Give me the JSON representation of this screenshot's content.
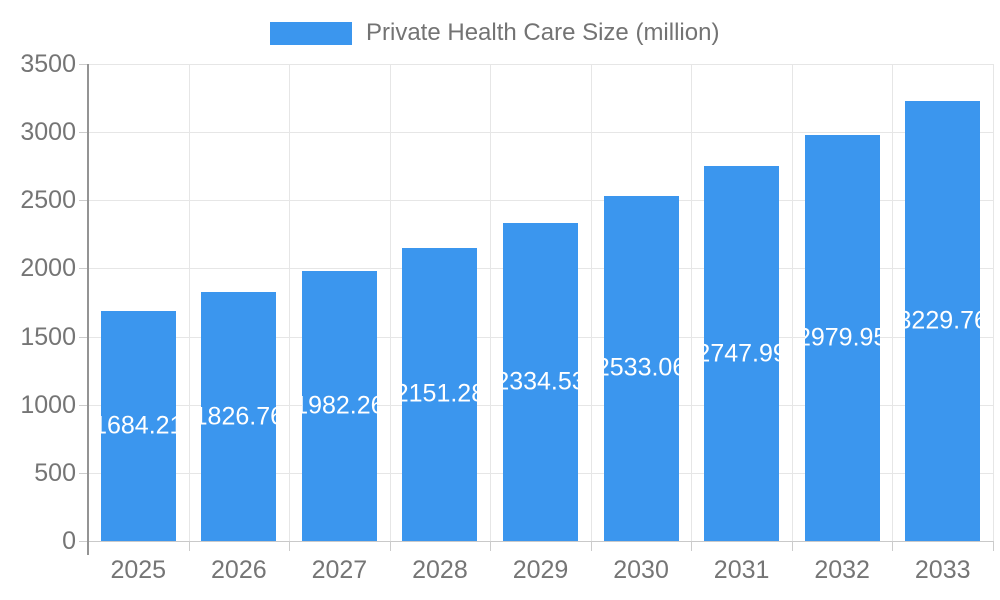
{
  "chart_data": {
    "type": "bar",
    "title": "Private Health Care Size (million)",
    "categories": [
      "2025",
      "2026",
      "2027",
      "2028",
      "2029",
      "2030",
      "2031",
      "2032",
      "2033"
    ],
    "values": [
      1684.21,
      1826.76,
      1982.26,
      2151.28,
      2334.53,
      2533.06,
      2747.99,
      2979.95,
      3229.76
    ],
    "value_labels": [
      "1684.21",
      "1826.76",
      "1982.26",
      "2151.28",
      "2334.53",
      "2533.06",
      "2747.99",
      "2979.95",
      "3229.76"
    ],
    "xlabel": "",
    "ylabel": "",
    "ylim": [
      0,
      3500
    ],
    "yticks": [
      0,
      500,
      1000,
      1500,
      2000,
      2500,
      3000,
      3500
    ],
    "grid": true,
    "legend_position": "top-center",
    "colors": {
      "bar": "#3B96EE",
      "axis_line": "#949494",
      "bottom_line": "#c9c9c9",
      "tick_line": "#cccccc",
      "gridline": "#e6e6e6",
      "axis_text": "#757575",
      "legend_text": "#737373",
      "value_text": "#ffffff",
      "background": "#ffffff"
    }
  }
}
